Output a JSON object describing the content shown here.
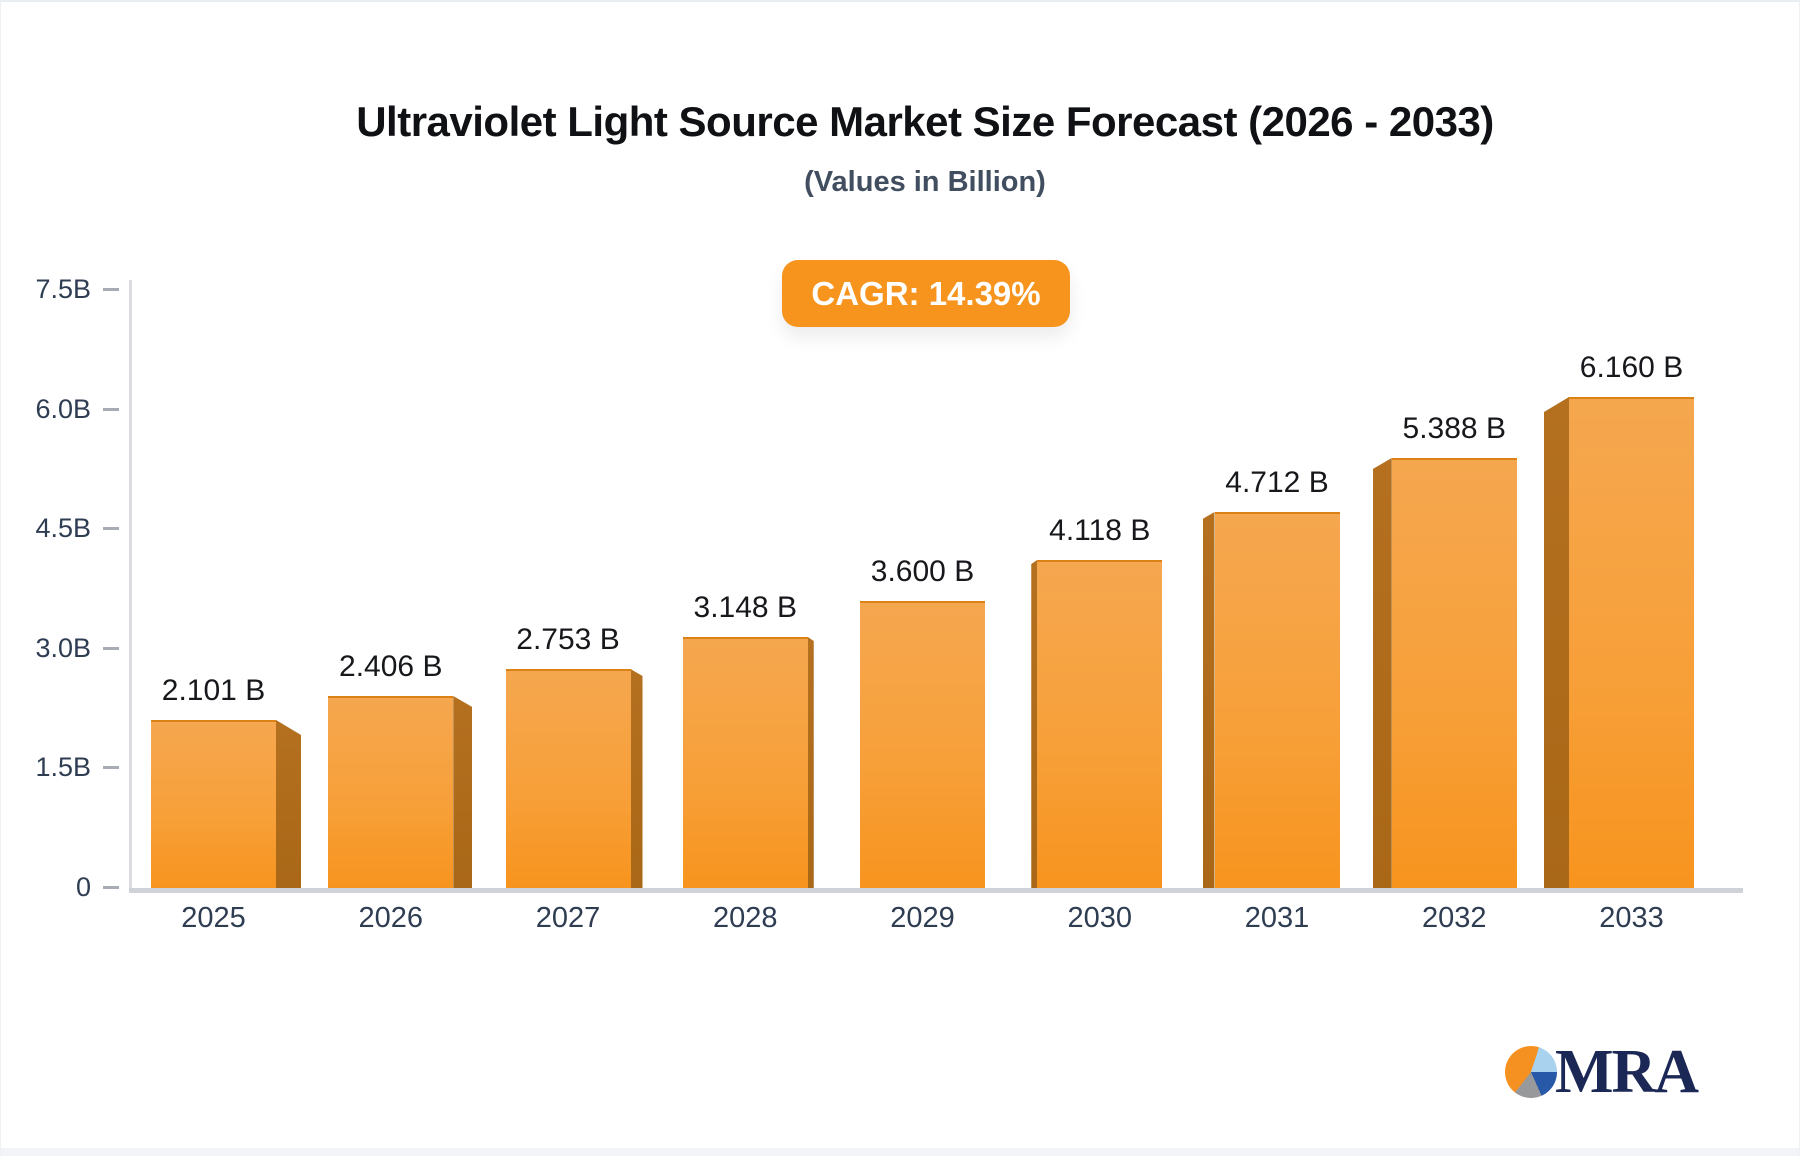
{
  "page": {
    "title": "Ultraviolet Light Source Market Size Forecast (2026 - 2033)",
    "subtitle": "(Values in Billion)",
    "cagr_badge": "CAGR: 14.39%",
    "logo_text": "MRA"
  },
  "chart_data": {
    "type": "bar",
    "title": "Ultraviolet Light Source Market Size Forecast (2026 - 2033)",
    "subtitle": "(Values in Billion)",
    "cagr": "14.39%",
    "categories": [
      "2025",
      "2026",
      "2027",
      "2028",
      "2029",
      "2030",
      "2031",
      "2032",
      "2033"
    ],
    "values": [
      2.101,
      2.406,
      2.753,
      3.148,
      3.6,
      4.118,
      4.712,
      5.388,
      6.16
    ],
    "value_labels": [
      "2.101 B",
      "2.406 B",
      "2.753 B",
      "3.148 B",
      "3.600 B",
      "4.118 B",
      "4.712 B",
      "5.388 B",
      "6.160 B"
    ],
    "ytick_labels": [
      "0",
      "1.5B",
      "3.0B",
      "4.5B",
      "6.0B",
      "7.5B"
    ],
    "ytick_values": [
      0,
      1.5,
      3.0,
      4.5,
      6.0,
      7.5
    ],
    "ylim": [
      0,
      7.5
    ],
    "xlabel": "",
    "ylabel": "",
    "grid": false,
    "legend": false,
    "colors": {
      "bar_top": "#f5a74f",
      "bar_bottom": "#f7941e",
      "bar_side": "#ad6b1c",
      "badge": "#f7941e",
      "axis": "#cfd3d9",
      "text_dark": "#101114",
      "text_axis": "#2f3d53",
      "logo_navy": "#1b2755",
      "logo_orange": "#f59120",
      "logo_lightblue": "#a9d2ee",
      "logo_blue": "#2858a8",
      "logo_gray": "#97999b"
    }
  }
}
